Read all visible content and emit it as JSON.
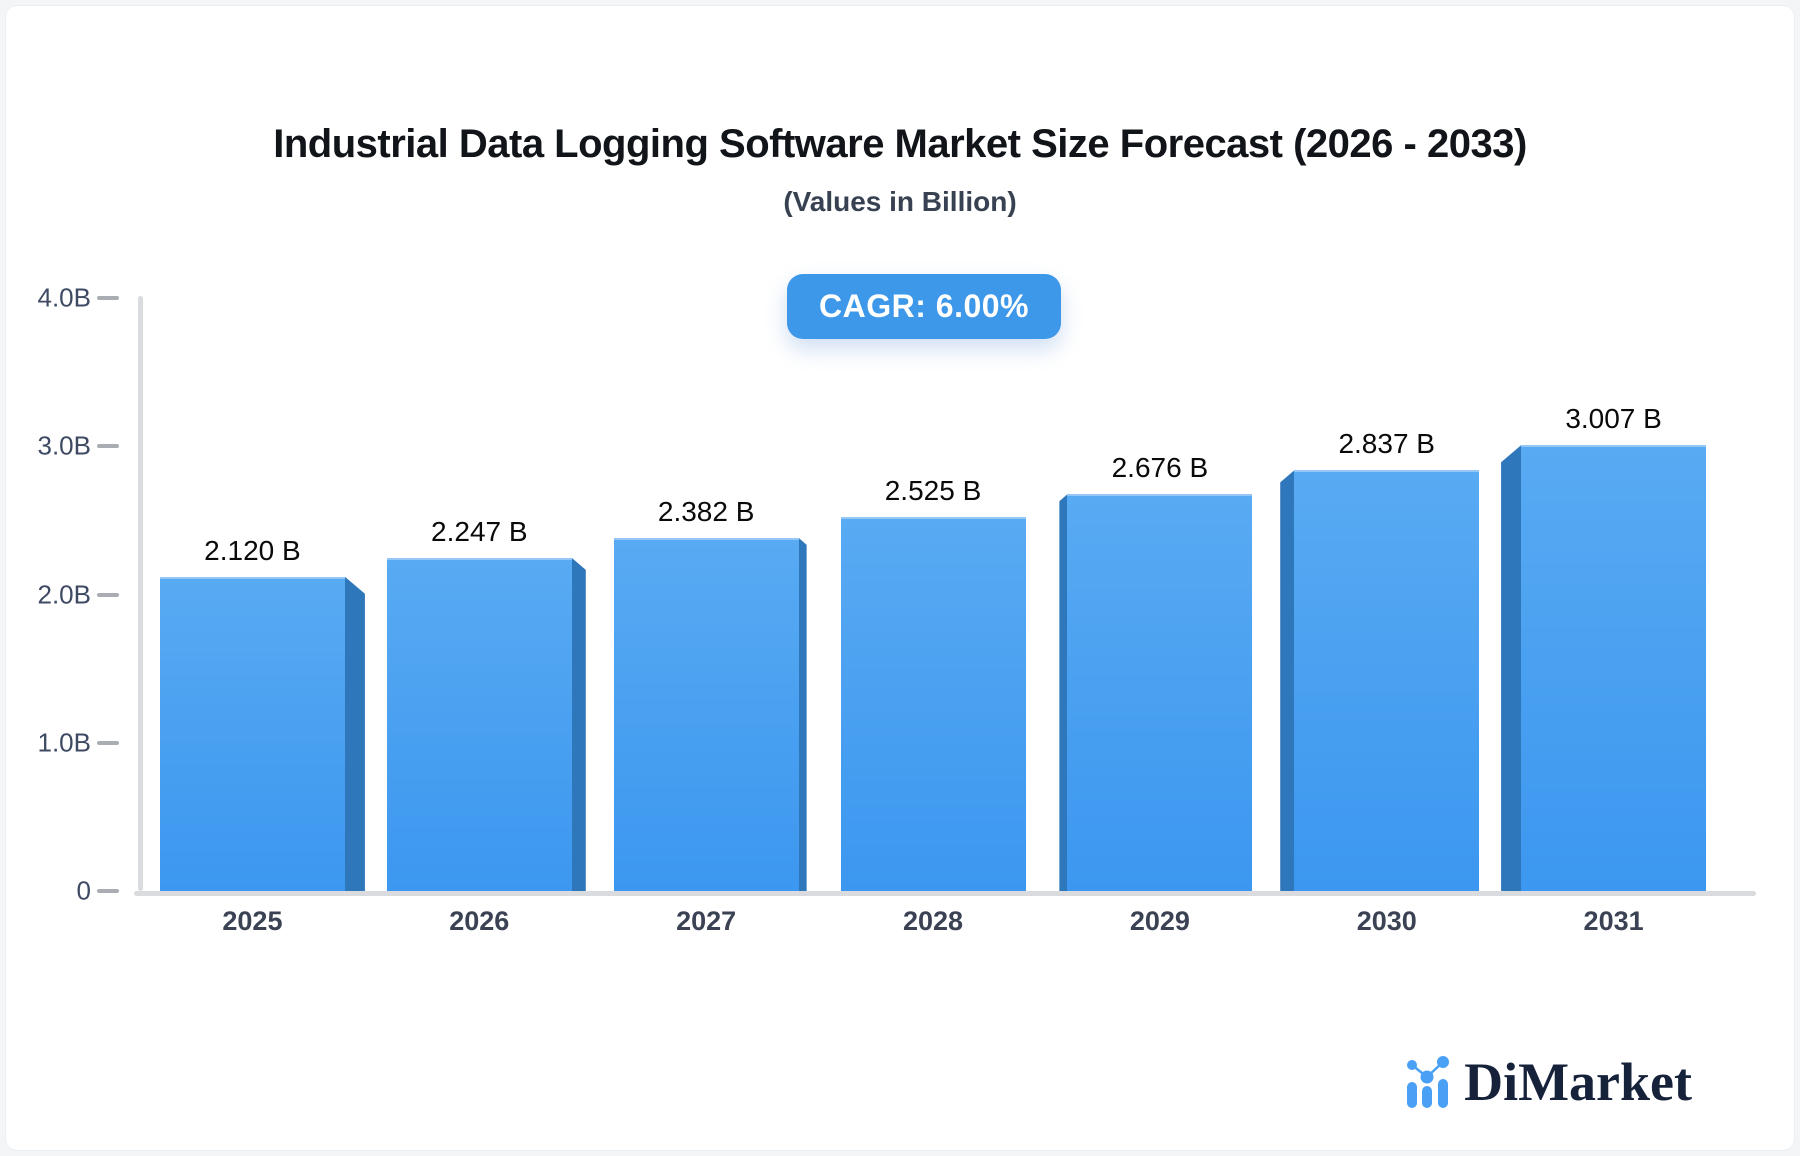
{
  "header": {
    "title": "Industrial Data Logging Software Market Size Forecast (2026 - 2033)",
    "subtitle": "(Values in Billion)",
    "cagr_label": "CAGR: 6.00%"
  },
  "chart_data": {
    "type": "bar",
    "title": "Industrial Data Logging Software Market Size Forecast (2026 - 2033)",
    "subtitle": "(Values in Billion)",
    "unit": "Billion",
    "cagr_percent": 6.0,
    "categories": [
      "2025",
      "2026",
      "2027",
      "2028",
      "2029",
      "2030",
      "2031"
    ],
    "values": [
      2.12,
      2.247,
      2.382,
      2.525,
      2.676,
      2.837,
      3.007
    ],
    "value_labels": [
      "2.120 B",
      "2.247 B",
      "2.382 B",
      "2.525 B",
      "2.676 B",
      "2.837 B",
      "3.007 B"
    ],
    "ylim": [
      0,
      4
    ],
    "y_tick_labels": [
      "4.0B",
      "3.0B",
      "2.0B",
      "1.0B",
      "0"
    ],
    "grid": false,
    "legend": false,
    "bar_style": "3d-perspective"
  },
  "branding": {
    "logo_text": "DiMarket",
    "logo_icon": "bar-line-chart-icon"
  },
  "colors": {
    "page_bg": "#F3F5F7",
    "card_bg": "#FFFFFF",
    "title": "#111418",
    "subtitle": "#374151",
    "badge_bg": "#3E98E9",
    "badge_text": "#FFFFFF",
    "bar_face_top": "#58AAF2",
    "bar_face_bottom": "#3C97F0",
    "bar_side": "#2E77BB",
    "axis_line": "#D9DBDE",
    "tick": "#A9ADB3",
    "y_label": "#3E4A63",
    "x_label": "#3A4254",
    "value_label": "#0A0A0A",
    "logo_text_color": "#16213A",
    "logo_icon_color": "#4AA0F4"
  }
}
